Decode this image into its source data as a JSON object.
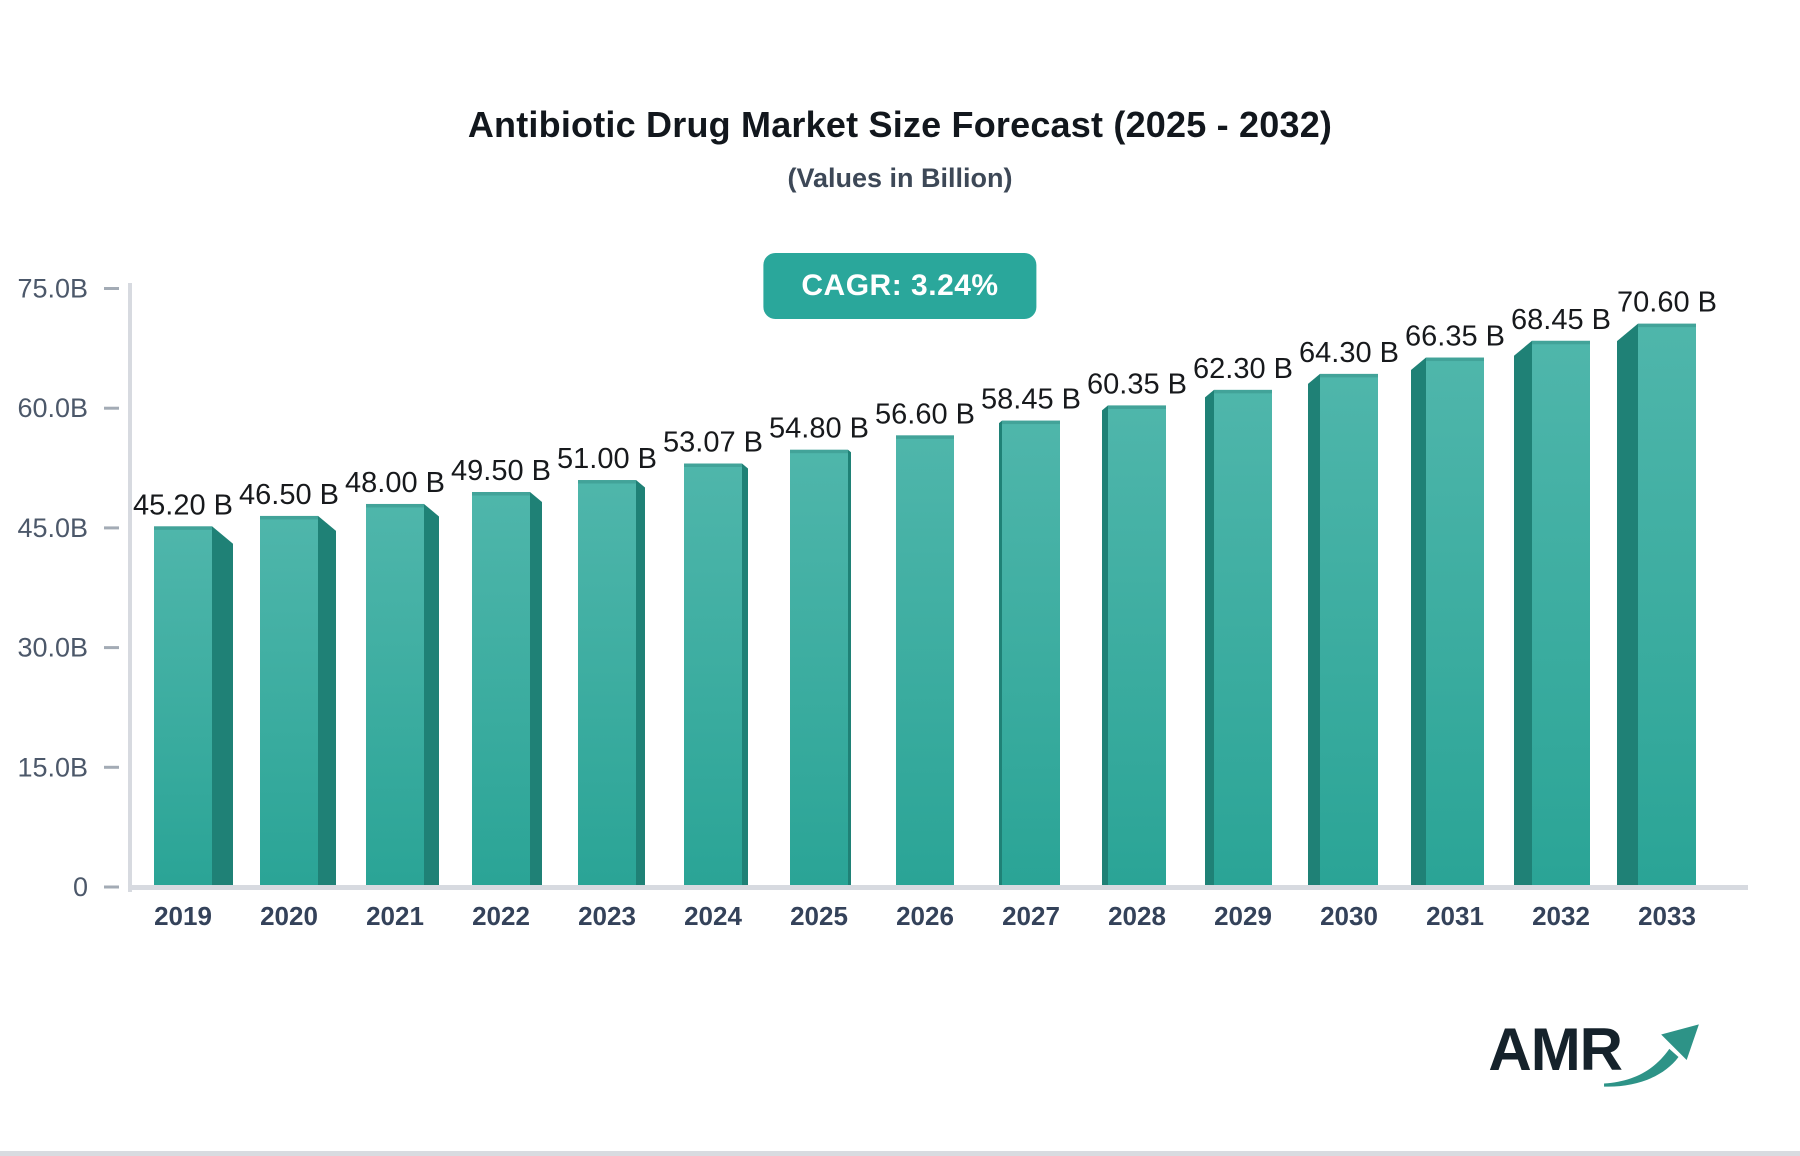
{
  "header": {
    "title": "Antibiotic Drug Market Size Forecast (2025 - 2032)",
    "subtitle": "(Values in Billion)",
    "cagr_badge": "CAGR: 3.24%"
  },
  "logo": {
    "text": "AMR",
    "icon": "growth-arrow-icon"
  },
  "colors": {
    "badge_bg": "#2aa79b",
    "bar_front_top": "#4fb6ab",
    "bar_front_bottom": "#2aa496",
    "bar_top_edge": "rgba(0,70,60,0.16)",
    "bar_side": "#1f8176",
    "axis_line": "#d7dae0",
    "tick_dash": "#a3abb5",
    "y_label": "#4c586a",
    "x_label": "#34425a",
    "value_label": "#17191c",
    "title": "#12171d",
    "subtitle": "#3d4857",
    "logo_text": "#15222b",
    "logo_arrow": "#2d9387"
  },
  "chart_data": {
    "type": "bar",
    "bar_style": "3d-perspective",
    "title": "Antibiotic Drug Market Size Forecast (2025 - 2032)",
    "subtitle": "(Values in Billion)",
    "annotation": "CAGR: 3.24%",
    "unit": "B",
    "grid": false,
    "legend": null,
    "ylim": [
      0,
      75
    ],
    "categories": [
      "2019",
      "2020",
      "2021",
      "2022",
      "2023",
      "2024",
      "2025",
      "2026",
      "2027",
      "2028",
      "2029",
      "2030",
      "2031",
      "2032",
      "2033"
    ],
    "values": [
      45.2,
      46.5,
      48.0,
      49.5,
      51.0,
      53.07,
      54.8,
      56.6,
      58.45,
      60.35,
      62.3,
      64.3,
      66.35,
      68.45,
      70.6
    ],
    "value_labels": [
      "45.20 B",
      "46.50 B",
      "48.00 B",
      "49.50 B",
      "51.00 B",
      "53.07 B",
      "54.80 B",
      "56.60 B",
      "58.45 B",
      "60.35 B",
      "62.30 B",
      "64.30 B",
      "66.35 B",
      "68.45 B",
      "70.60 B"
    ],
    "yticks": [
      {
        "value": 75,
        "label": "75.0B"
      },
      {
        "value": 60,
        "label": "60.0B"
      },
      {
        "value": 45,
        "label": "45.0B"
      },
      {
        "value": 30,
        "label": "30.0B"
      },
      {
        "value": 15,
        "label": "15.0B"
      },
      {
        "value": 0,
        "label": "0"
      }
    ]
  }
}
